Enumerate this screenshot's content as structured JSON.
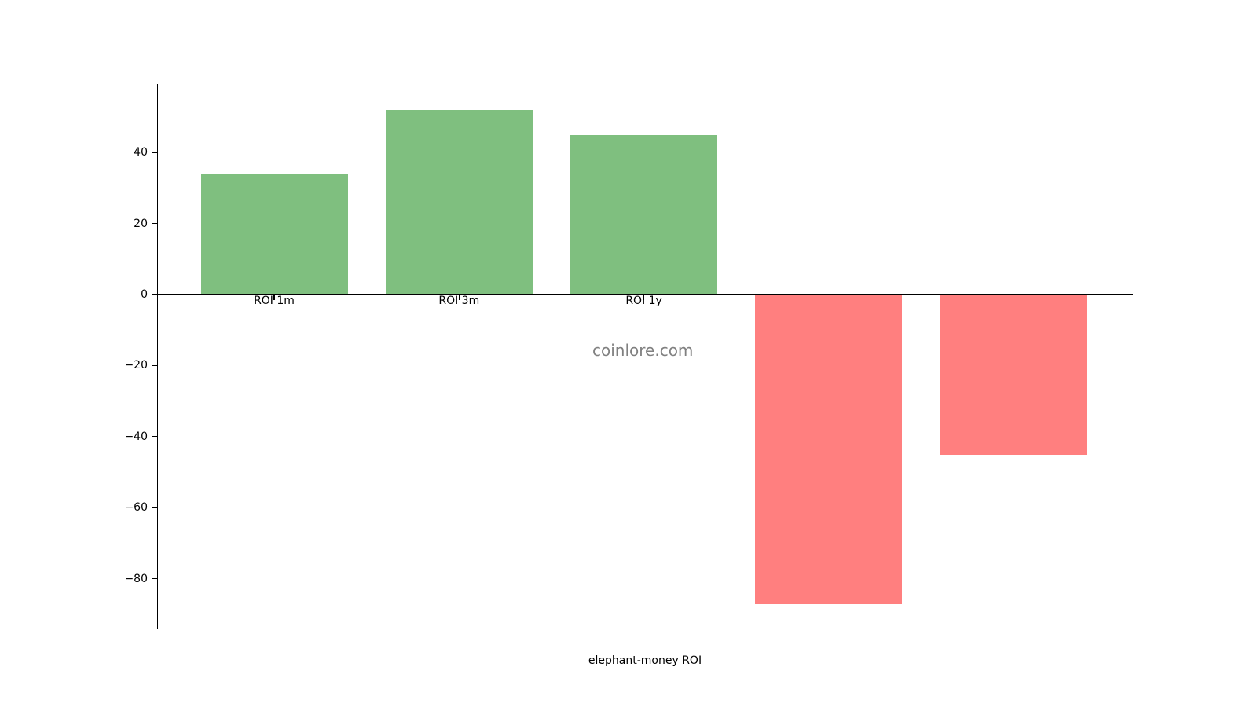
{
  "watermark": {
    "text": "coinlore.com",
    "color": "#808080"
  },
  "chart_data": {
    "type": "bar",
    "title": "",
    "xlabel": "elephant-money ROI",
    "ylabel": "",
    "categories": [
      "ROI 1m",
      "ROI 3m",
      "ROI 1y",
      "",
      ""
    ],
    "values": [
      34,
      52,
      45,
      -87,
      -45
    ],
    "positive_color": "#7fbf7f",
    "negative_color": "#ff7f7f",
    "axis_color": "#000000",
    "tick_label_color": "#000000",
    "y_ticks": [
      40,
      20,
      0,
      -20,
      -40,
      -60,
      -80
    ],
    "ylim": [
      -94,
      59
    ],
    "grid": false,
    "legend": null
  }
}
